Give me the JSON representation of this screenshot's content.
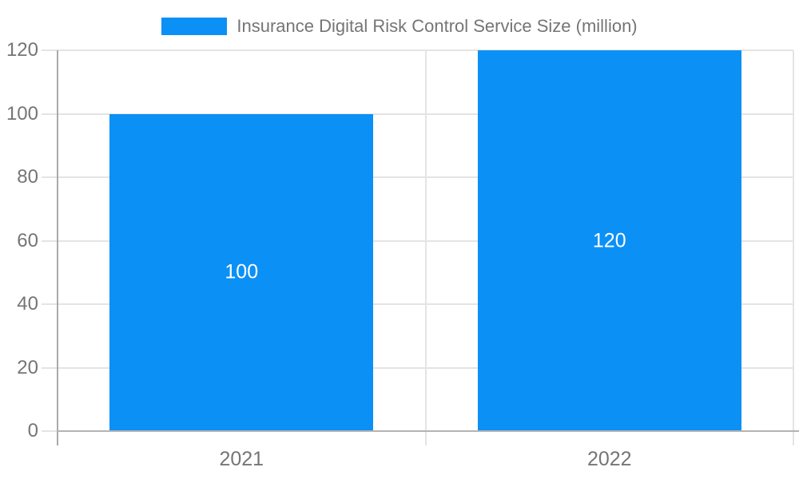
{
  "legend": {
    "label": "Insurance Digital Risk Control Service Size (million)"
  },
  "colors": {
    "bar": "#0B90F6",
    "gridline": "#E4E4E4",
    "axis_line": "#AAAAAA",
    "baseline": "#B3B3B3",
    "text": "#757575",
    "bar_label": "#FFFFFF",
    "background": "#FFFFFF"
  },
  "chart_data": {
    "type": "bar",
    "title": "Insurance Digital Risk Control Service Size (million)",
    "categories": [
      "2021",
      "2022"
    ],
    "series": [
      {
        "name": "Insurance Digital Risk Control Service Size (million)",
        "values": [
          100,
          120
        ]
      }
    ],
    "bar_labels": [
      "100",
      "120"
    ],
    "xlabel": "",
    "ylabel": "",
    "ylim": [
      0,
      120
    ],
    "yticks": [
      0,
      20,
      40,
      60,
      80,
      100,
      120
    ],
    "grid": true,
    "legend_position": "top"
  }
}
